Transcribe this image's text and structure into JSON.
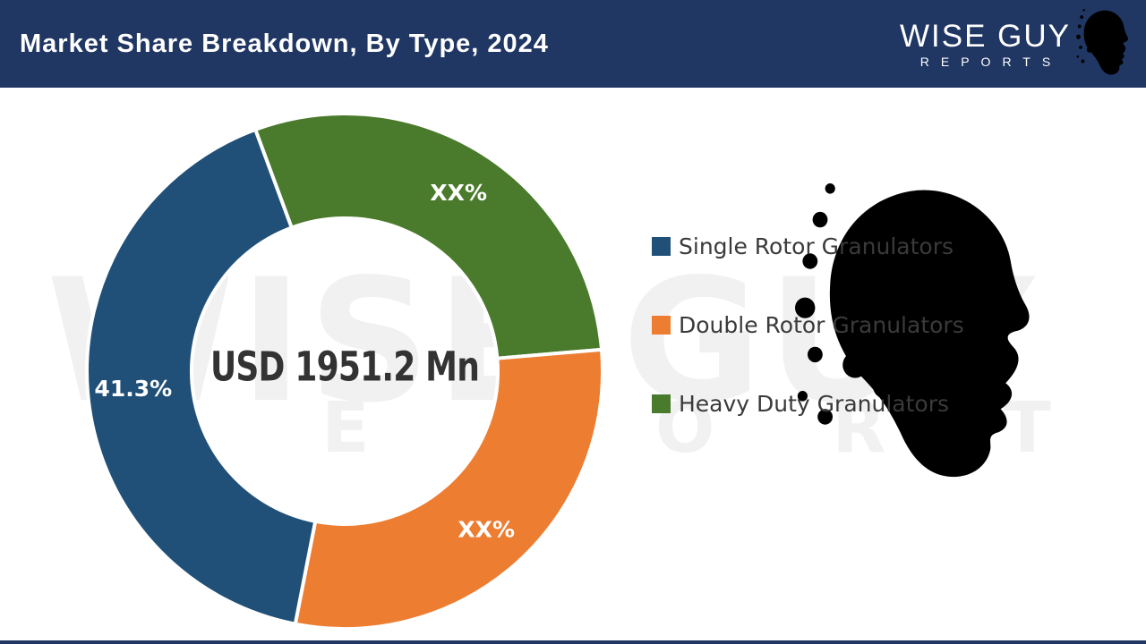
{
  "header": {
    "title": "Market Share Breakdown, By Type, 2024",
    "logo": {
      "name": "WISE GUY",
      "subtitle": "REPORTS"
    }
  },
  "colors": {
    "navy": "#203663",
    "single_rotor_blue": "#205078",
    "double_rotor_orange": "#ED7D31",
    "heavy_duty_green": "#4A7A2B",
    "center_text": "#333333",
    "legend_text": "#3A3A3A",
    "watermark_gray": "#F1F1F2",
    "slice_label_white": "#FFFFFF"
  },
  "chart_data": {
    "type": "pie",
    "subtype": "donut",
    "title": "Market Share Breakdown, By Type, 2024",
    "center_label": "USD 1951.2 Mn",
    "donut_hole_ratio": 0.59,
    "start_angle_deg": 4.8,
    "direction": "counterclockwise",
    "legend_position": "right",
    "slices": [
      {
        "label": "Heavy Duty Granulators",
        "display_label": "XX%",
        "value_pct": 29.3,
        "color": "#4A7A2B"
      },
      {
        "label": "Single Rotor Granulators",
        "display_label": "41.3%",
        "value_pct": 41.3,
        "color": "#205078"
      },
      {
        "label": "Double Rotor Granulators",
        "display_label": "XX%",
        "value_pct": 29.4,
        "color": "#ED7D31"
      }
    ]
  },
  "legend": {
    "items": [
      {
        "label": "Single Rotor Granulators",
        "color": "#205078"
      },
      {
        "label": "Double Rotor Granulators",
        "color": "#ED7D31"
      },
      {
        "label": "Heavy Duty Granulators",
        "color": "#4A7A2B"
      }
    ]
  },
  "watermark": {
    "line1": "WISE GUY",
    "line2": "R E P O R T S"
  }
}
